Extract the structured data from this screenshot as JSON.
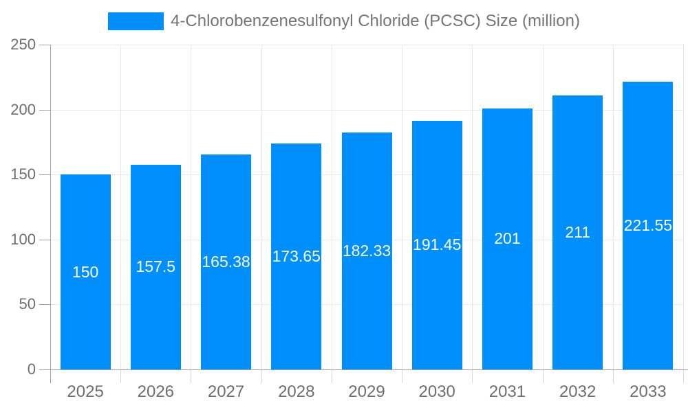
{
  "chart": {
    "legend": {
      "label": "4-Chlorobenzenesulfonyl Chloride (PCSC) Size (million)"
    }
  },
  "chart_data": {
    "type": "bar",
    "title": "4-Chlorobenzenesulfonyl Chloride (PCSC) Size (million)",
    "categories": [
      "2025",
      "2026",
      "2027",
      "2028",
      "2029",
      "2030",
      "2031",
      "2032",
      "2033"
    ],
    "series": [
      {
        "name": "4-Chlorobenzenesulfonyl Chloride (PCSC) Size (million)",
        "values": [
          150,
          157.5,
          165.38,
          173.65,
          182.33,
          191.45,
          201,
          211,
          221.55
        ]
      }
    ],
    "data_labels": [
      "150",
      "157.5",
      "165.38",
      "173.65",
      "182.33",
      "191.45",
      "201",
      "211",
      "221.55"
    ],
    "xlabel": "",
    "ylabel": "",
    "ylim": [
      0,
      250
    ],
    "yticks": [
      0,
      50,
      100,
      150,
      200,
      250
    ],
    "ytick_labels": [
      "0",
      "50",
      "100",
      "150",
      "200",
      "250"
    ],
    "grid": true,
    "legend_position": "top",
    "colors": {
      "bar": "#008FFB",
      "data_label": "#FFFFFF",
      "axis_label": "#6E6E6E",
      "legend_text": "#757575",
      "gridline": "#E7E7E7",
      "axis_line": "#A0A0A5",
      "category_tick": "#D6D6D6",
      "background": "#FFFFFF"
    }
  }
}
